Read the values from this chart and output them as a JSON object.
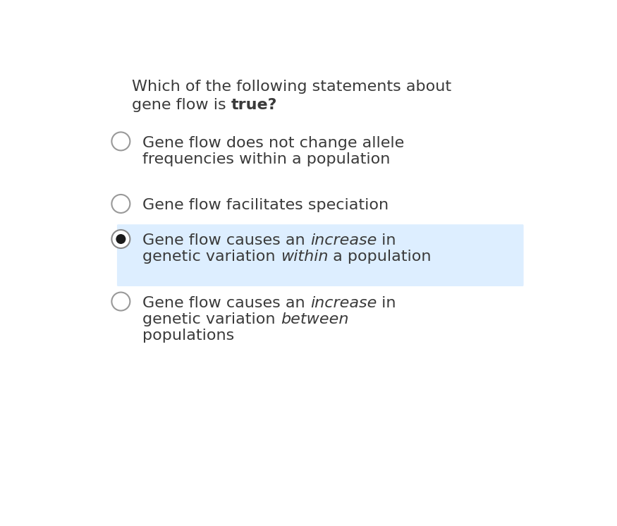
{
  "background_color": "#ffffff",
  "title_line1": "Which of the following statements about",
  "title_line2_normal": "gene flow is ",
  "title_line2_bold": "true?",
  "options": [
    {
      "id": 1,
      "selected": false,
      "highlighted": false,
      "lines": [
        [
          {
            "text": "Gene flow does not change allele",
            "italic": false
          }
        ],
        [
          {
            "text": "frequencies within a population",
            "italic": false
          }
        ]
      ]
    },
    {
      "id": 2,
      "selected": false,
      "highlighted": false,
      "lines": [
        [
          {
            "text": "Gene flow facilitates speciation",
            "italic": false
          }
        ]
      ]
    },
    {
      "id": 3,
      "selected": true,
      "highlighted": true,
      "lines": [
        [
          {
            "text": "Gene flow causes an ",
            "italic": false
          },
          {
            "text": "increase",
            "italic": true
          },
          {
            "text": " in",
            "italic": false
          }
        ],
        [
          {
            "text": "genetic variation ",
            "italic": false
          },
          {
            "text": "within",
            "italic": true
          },
          {
            "text": " a population",
            "italic": false
          }
        ]
      ]
    },
    {
      "id": 4,
      "selected": false,
      "highlighted": false,
      "lines": [
        [
          {
            "text": "Gene flow causes an ",
            "italic": false
          },
          {
            "text": "increase",
            "italic": true
          },
          {
            "text": " in",
            "italic": false
          }
        ],
        [
          {
            "text": "genetic variation ",
            "italic": false
          },
          {
            "text": "between",
            "italic": true
          }
        ],
        [
          {
            "text": "populations",
            "italic": false
          }
        ]
      ]
    }
  ],
  "highlight_color": "#ddeeff",
  "circle_color_unselected": "#999999",
  "circle_fill_unselected": "#ffffff",
  "circle_color_selected_outer": "#888888",
  "circle_color_selected_inner": "#1a1a1a",
  "text_color": "#3a3a3a",
  "title_fontsize": 16,
  "option_fontsize": 16,
  "fig_width": 8.75,
  "fig_height": 7.46,
  "dpi": 100
}
